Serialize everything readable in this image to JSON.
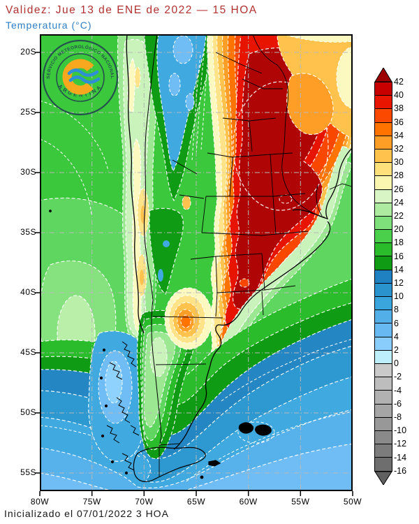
{
  "header": {
    "validity_line": "Validez: Jue 13 de ENE de 2022 — 15 HOA",
    "variable_line": "Temperatura (°C)"
  },
  "footer": {
    "init_line": "Inicializado el 07/01/2022 3 HOA"
  },
  "logo": {
    "org_top": "SERVICIO METEOROLÓGICO NACIONAL",
    "org_bottom": "ARGENTINA",
    "ring_color": "#24504e",
    "emblem_orange": "#f7a81f",
    "emblem_blue": "#2f8fd6"
  },
  "axes": {
    "lat_labels": [
      "20S",
      "25S",
      "30S",
      "35S",
      "40S",
      "45S",
      "50S",
      "55S"
    ],
    "lon_labels": [
      "80W",
      "75W",
      "70W",
      "65W",
      "60W",
      "55W",
      "50W"
    ]
  },
  "colorbar": {
    "unit": "°C",
    "levels": [
      42,
      40,
      38,
      36,
      34,
      32,
      30,
      28,
      26,
      24,
      22,
      20,
      18,
      16,
      14,
      12,
      10,
      8,
      6,
      4,
      2,
      0,
      -2,
      -4,
      -6,
      -8,
      -10,
      -12,
      -14,
      -16
    ],
    "segment_colors": [
      "#c80000",
      "#e81600",
      "#fb4a00",
      "#ff7300",
      "#ff9e26",
      "#ffc34d",
      "#ffe07a",
      "#fbf6b0",
      "#d8f5c5",
      "#adeca0",
      "#7de07a",
      "#4bd04b",
      "#2abc2a",
      "#0f9b13",
      "#1f81c1",
      "#2a93cd",
      "#3aa5dd",
      "#52afe8",
      "#68b9f2",
      "#88cdfb",
      "#bceefb",
      "#c9c9c9",
      "#bdbdbd",
      "#b1b1b1",
      "#a5a5a5",
      "#989898",
      "#8a8a8a",
      "#7c7c7c",
      "#6e6e6e"
    ],
    "above_color": "#9c0000",
    "below_color": "#606060"
  },
  "colors": {
    "title_red": "#b13030",
    "subtitle_blue": "#2e7fc4",
    "footer_black": "#161616",
    "hot_core": "#b00505",
    "base_green": "#3cc83c",
    "ocean_blue": "#3fa9e0"
  }
}
